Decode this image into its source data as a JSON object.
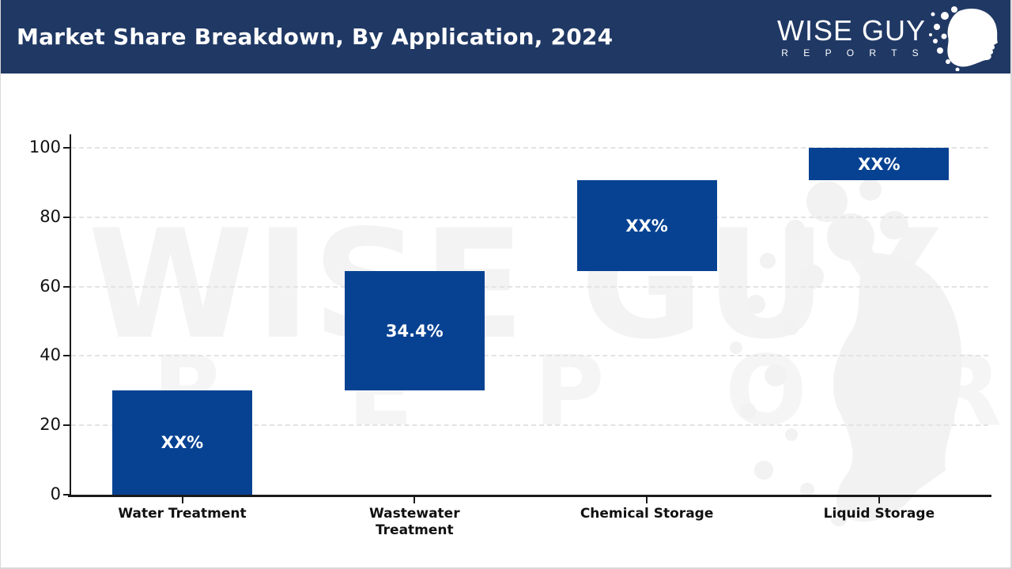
{
  "header": {
    "title": "Market Share Breakdown, By Application, 2024",
    "logo": {
      "line1": "WISE GUY",
      "line2": "R E P O R T S"
    }
  },
  "watermark": {
    "line1": "WISE GUY",
    "line2": "REPORTS"
  },
  "chart_data": {
    "type": "bar",
    "variant": "floating-segment (waterfall style market share breakdown)",
    "title": "Market Share Breakdown, By Application, 2024",
    "categories": [
      "Water Treatment",
      "Wastewater Treatment",
      "Chemical Storage",
      "Liquid Storage"
    ],
    "segments": [
      {
        "category": "Water Treatment",
        "start": 0,
        "end": 30,
        "label": "XX%"
      },
      {
        "category": "Wastewater Treatment",
        "start": 30,
        "end": 64.4,
        "label": "34.4%"
      },
      {
        "category": "Chemical Storage",
        "start": 64.4,
        "end": 90.6,
        "label": "XX%"
      },
      {
        "category": "Liquid Storage",
        "start": 90.6,
        "end": 100,
        "label": "XX%"
      }
    ],
    "yticks": [
      0,
      20,
      40,
      60,
      80,
      100
    ],
    "ylim": [
      0,
      105
    ],
    "xlabel": "",
    "ylabel": "",
    "grid": "horizontal dashed",
    "legend": "none",
    "bar_color": "#074292"
  },
  "colors": {
    "header_bg": "#203864",
    "bar": "#074292",
    "grid": "#e3e3e3",
    "axis": "#1a1a1a",
    "watermark": "#f3f3f3",
    "border": "#d9d9d9",
    "bar_label_text": "#ffffff"
  }
}
